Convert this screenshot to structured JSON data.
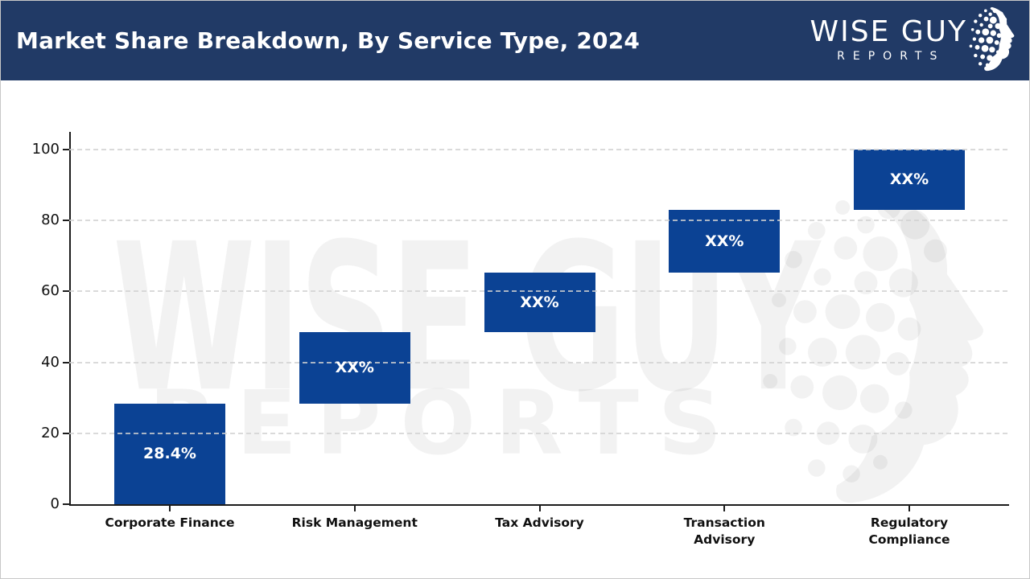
{
  "page": {
    "background": "#ffffff",
    "border_color": "#c8c8c8"
  },
  "header": {
    "bg_color": "#213a66",
    "title": "Market Share Breakdown, By Service Type, 2024",
    "logo": {
      "name": "WISE GUY",
      "sub": "REPORTS"
    }
  },
  "watermark": {
    "big": "WISE GUY",
    "sub": "REPORTS"
  },
  "chart_data": {
    "type": "bar",
    "subtype": "waterfall",
    "title": "Market Share Breakdown, By Service Type, 2024",
    "xlabel": "",
    "ylabel": "",
    "ylim": [
      0,
      100
    ],
    "yticks": [
      0,
      20,
      40,
      60,
      80,
      100
    ],
    "grid": {
      "axis": "y",
      "style": "dashed",
      "color": "#d2d2d2"
    },
    "bar_color": "#0b4294",
    "label_color": "#ffffff",
    "categories": [
      "Corporate Finance",
      "Risk Management",
      "Tax Advisory",
      "Transaction Advisory",
      "Regulatory Compliance"
    ],
    "tick_labels": [
      "Corporate Finance",
      "Risk Management",
      "Tax Advisory",
      "Transaction\nAdvisory",
      "Regulatory\nCompliance"
    ],
    "segments": [
      {
        "start": 0,
        "end": 28.4,
        "value": 28.4,
        "label": "28.4%"
      },
      {
        "start": 28.4,
        "end": 48.6,
        "value": 20.2,
        "label": "XX%"
      },
      {
        "start": 48.6,
        "end": 65.4,
        "value": 16.8,
        "label": "XX%"
      },
      {
        "start": 65.4,
        "end": 83.0,
        "value": 17.6,
        "label": "XX%"
      },
      {
        "start": 83.0,
        "end": 100,
        "value": 17.0,
        "label": "XX%"
      }
    ]
  }
}
